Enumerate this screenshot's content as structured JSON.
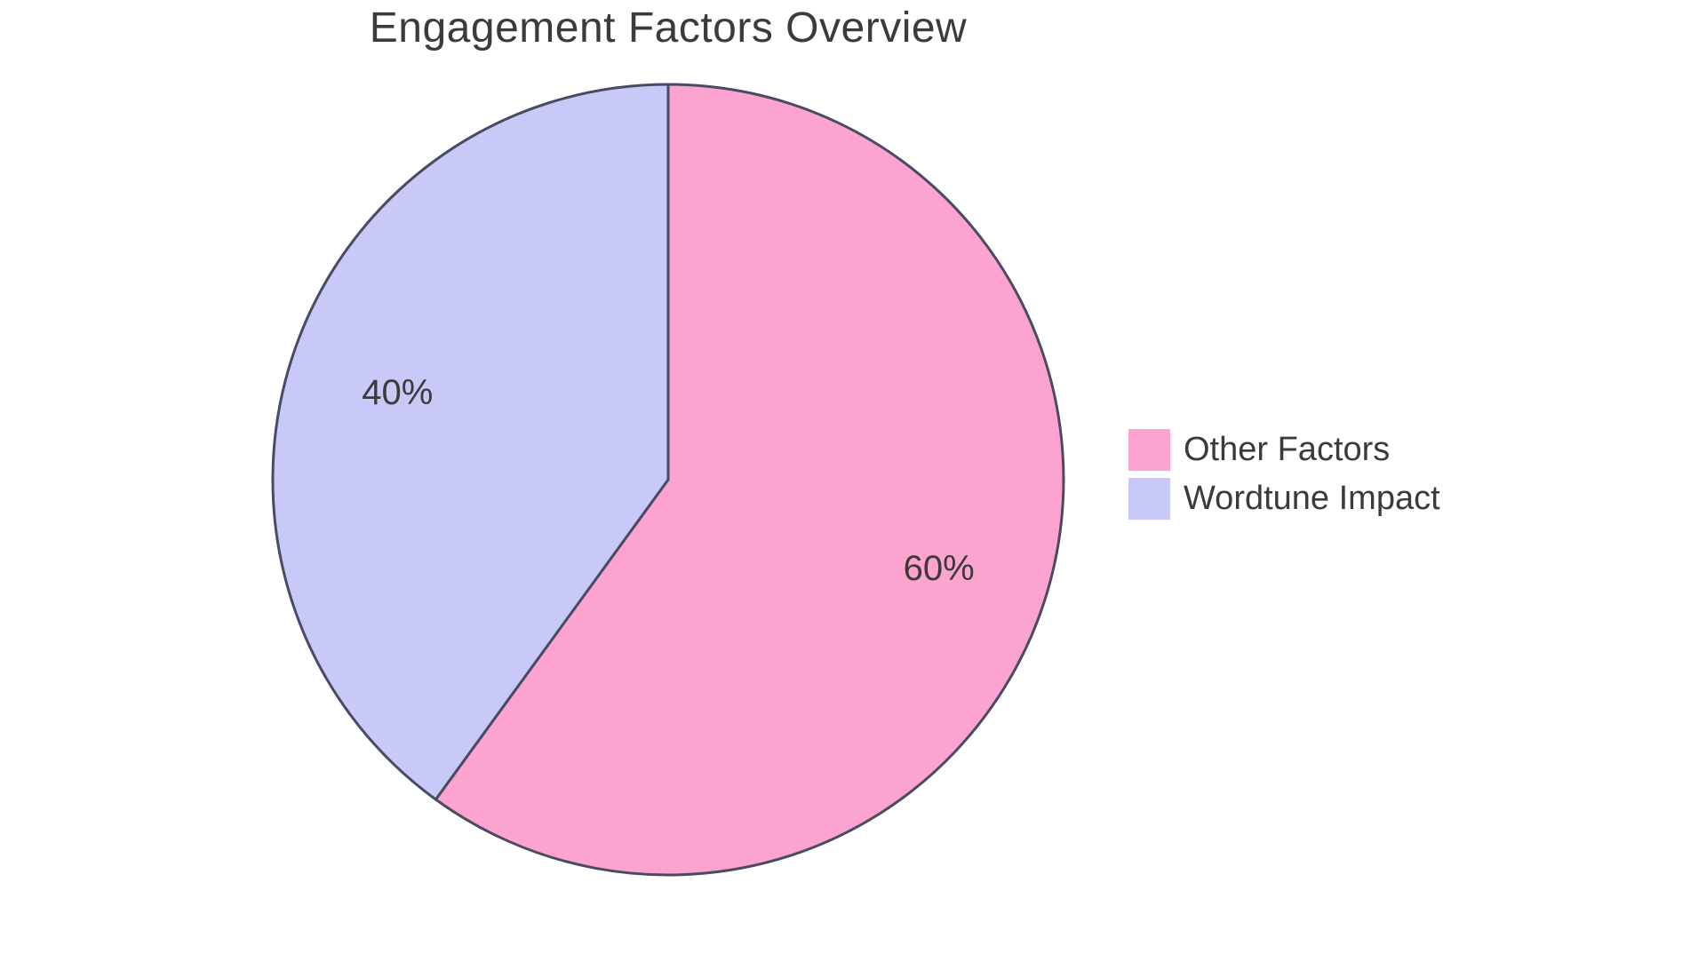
{
  "chart_data": {
    "type": "pie",
    "title": "Engagement Factors Overview",
    "labels": [
      "Other Factors",
      "Wordtune Impact"
    ],
    "values": [
      60,
      40
    ],
    "percent_labels": [
      "60%",
      "40%"
    ],
    "colors": [
      "#FCA3CF",
      "#C8C9F7"
    ],
    "border_color": "#484B63",
    "border_width": 3,
    "text_color": "#3B3B3B",
    "start_angle": "top",
    "direction": "clockwise",
    "legend_position": "right",
    "background_color": "#FFFFFF"
  }
}
